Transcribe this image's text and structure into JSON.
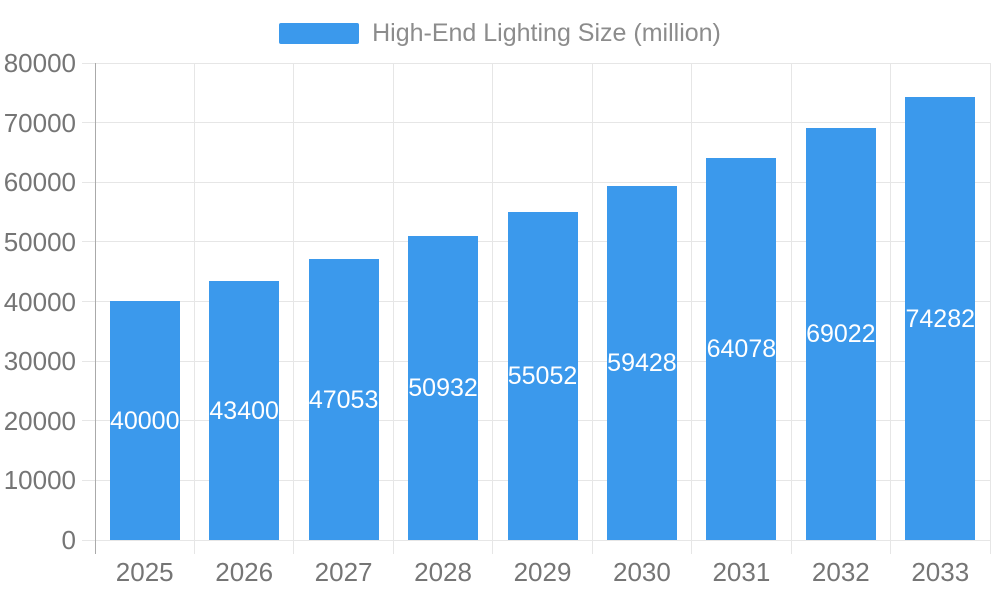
{
  "chart_data": {
    "type": "bar",
    "title": "",
    "categories": [
      "2025",
      "2026",
      "2027",
      "2028",
      "2029",
      "2030",
      "2031",
      "2032",
      "2033"
    ],
    "series": [
      {
        "name": "High-End Lighting Size (million)",
        "values": [
          40000,
          43400,
          47053,
          50932,
          55052,
          59428,
          64078,
          69022,
          74282
        ]
      }
    ],
    "xlabel": "",
    "ylabel": "",
    "ylim": [
      0,
      80000
    ],
    "y_ticks": [
      0,
      10000,
      20000,
      30000,
      40000,
      50000,
      60000,
      70000,
      80000
    ],
    "grid": true,
    "legend_position": "top-center",
    "bar_value_labels": "inside-center-white"
  },
  "colors": {
    "bar": "#3b99ec",
    "grid": "#e6e6e6",
    "axis_line": "#aaaaaa",
    "axis_label": "#757575",
    "legend_text": "#8c8c8c",
    "value_label": "#ffffff",
    "background": "#ffffff"
  }
}
